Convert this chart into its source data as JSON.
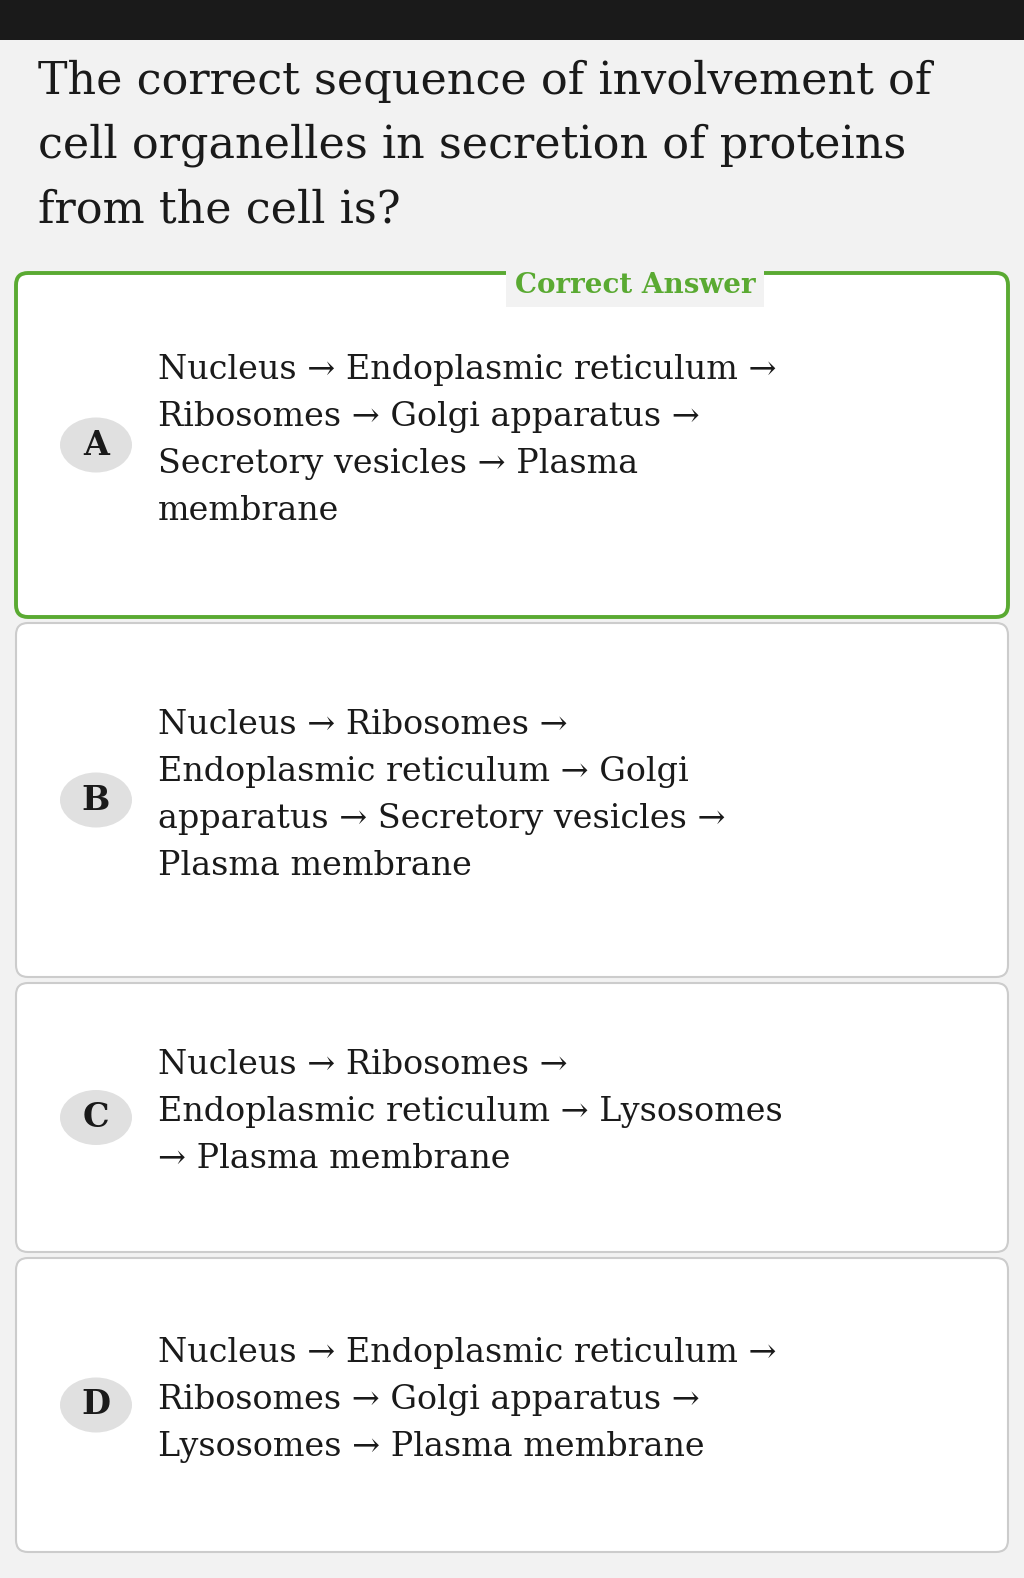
{
  "background_color": "#f2f2f2",
  "top_bar_color": "#1a1a1a",
  "title_text": "The correct sequence of involvement of\ncell organelles in secretion of proteins\nfrom the cell is?",
  "title_fontsize": 32,
  "title_color": "#1a1a1a",
  "correct_answer_label": "Correct Answer",
  "correct_answer_color": "#5aaa32",
  "options": [
    {
      "label": "A",
      "text": "Nucleus → Endoplasmic reticulum →\nRibosomes → Golgi apparatus →\nSecretory vesicles → Plasma\nmembrane",
      "is_correct": true,
      "border_color": "#5aaa32",
      "label_bg": "#e0e0e0"
    },
    {
      "label": "B",
      "text": "Nucleus → Ribosomes →\nEndoplasmic reticulum → Golgi\napparatus → Secretory vesicles →\nPlasma membrane",
      "is_correct": false,
      "border_color": "#cccccc",
      "label_bg": "#e0e0e0"
    },
    {
      "label": "C",
      "text": "Nucleus → Ribosomes →\nEndoplasmic reticulum → Lysosomes\n→ Plasma membrane",
      "is_correct": false,
      "border_color": "#cccccc",
      "label_bg": "#e0e0e0"
    },
    {
      "label": "D",
      "text": "Nucleus → Endoplasmic reticulum →\nRibosomes → Golgi apparatus →\nLysosomes → Plasma membrane",
      "is_correct": false,
      "border_color": "#cccccc",
      "label_bg": "#e0e0e0"
    }
  ],
  "option_fontsize": 24,
  "label_fontsize": 24,
  "fig_width": 10.24,
  "fig_height": 15.78,
  "dpi": 100
}
